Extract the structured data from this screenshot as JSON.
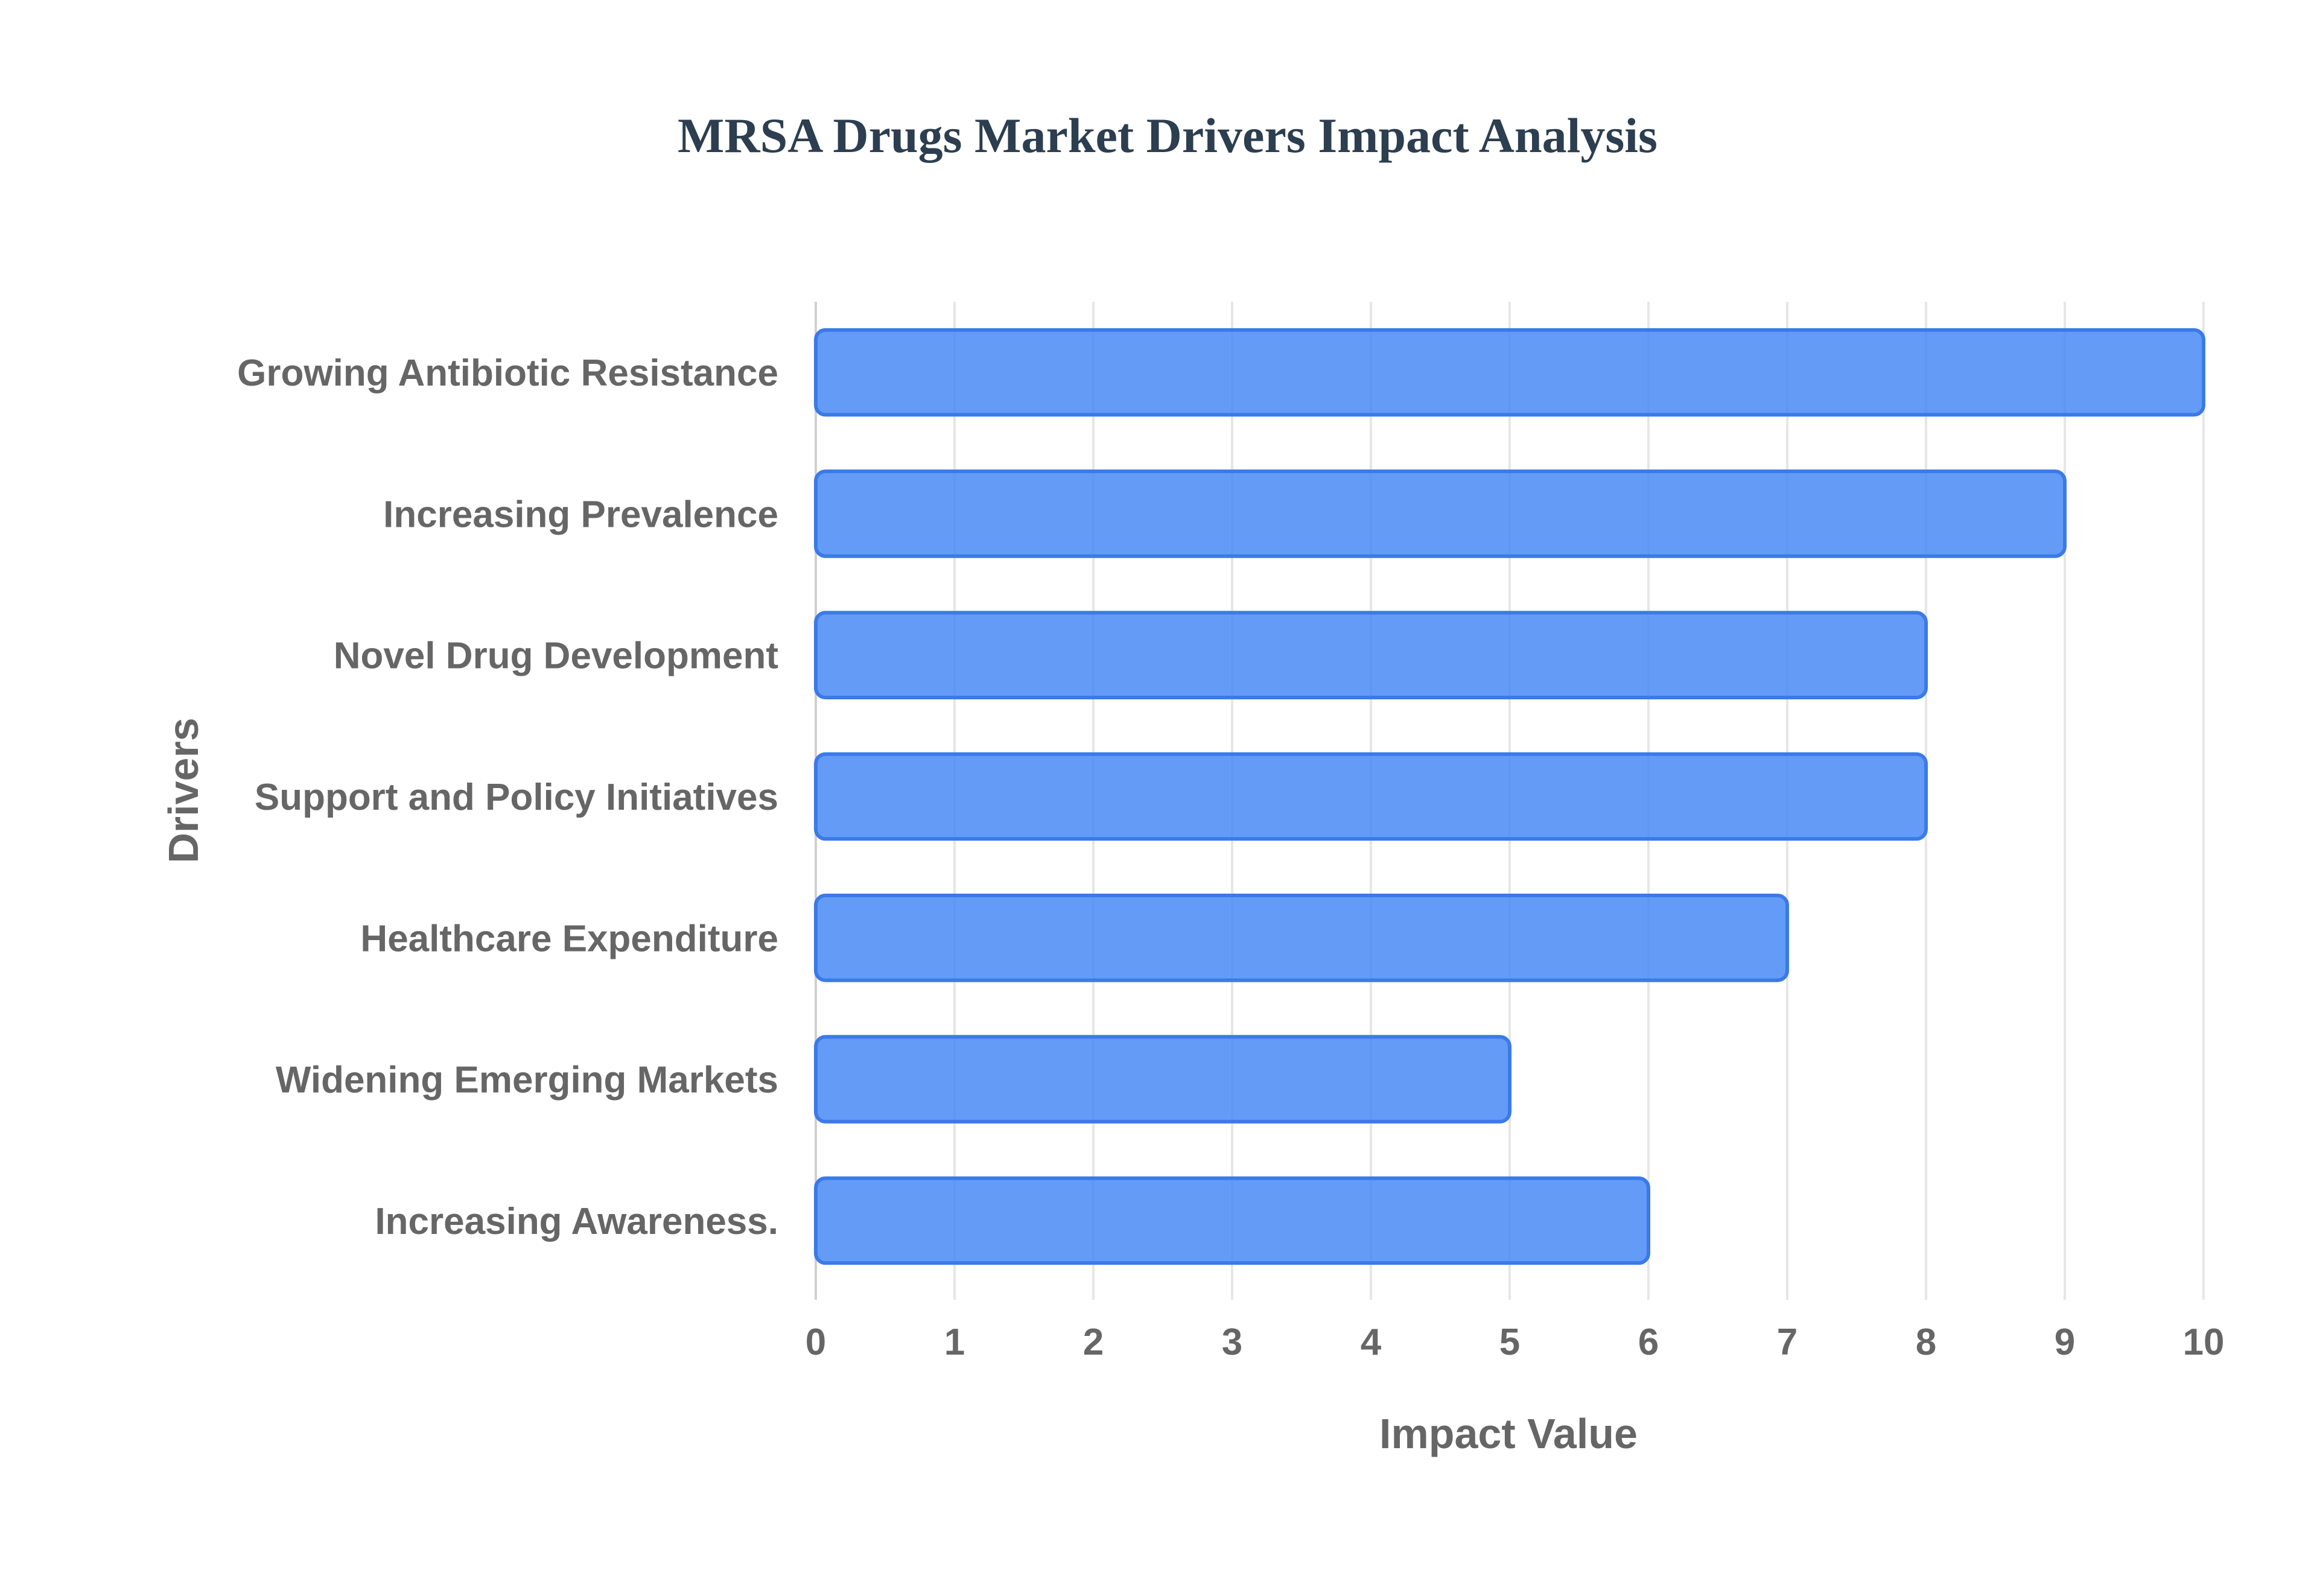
{
  "chart_data": {
    "type": "bar",
    "orientation": "horizontal",
    "title": "MRSA Drugs Market Drivers Impact Analysis",
    "xlabel": "Impact Value",
    "ylabel": "Drivers",
    "categories": [
      "Growing Antibiotic Resistance",
      "Increasing Prevalence",
      "Novel Drug Development",
      "Support and Policy Initiatives",
      "Healthcare Expenditure",
      "Widening Emerging Markets",
      "Increasing Awareness."
    ],
    "values": [
      10,
      9,
      8,
      8,
      7,
      5,
      6
    ],
    "xlim": [
      0,
      10
    ],
    "xticks": [
      "0",
      "1",
      "2",
      "3",
      "4",
      "5",
      "6",
      "7",
      "8",
      "9",
      "10"
    ],
    "grid": "vertical",
    "bar_color": "#4285F4",
    "bar_border_color": "#3B7AE8",
    "title_color": "#2C3E50",
    "label_color": "#666666"
  }
}
